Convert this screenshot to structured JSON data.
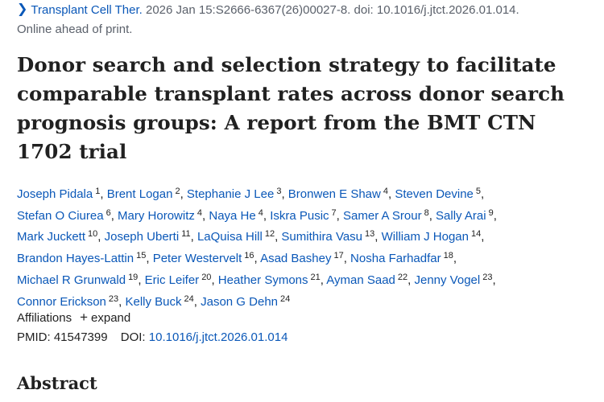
{
  "citation": {
    "journal": "Transplant Cell Ther.",
    "details": " 2026 Jan 15:S2666-6367(26)00027-8. doi: 10.1016/j.jtct.2026.01.014.",
    "status": "Online ahead of print."
  },
  "title": "Donor search and selection strategy to facilitate comparable transplant rates across donor search prognosis groups: A report from the BMT CTN 1702 trial",
  "authors": [
    {
      "name": "Joseph Pidala",
      "aff": "1"
    },
    {
      "name": "Brent Logan",
      "aff": "2"
    },
    {
      "name": "Stephanie J Lee",
      "aff": "3"
    },
    {
      "name": "Bronwen E Shaw",
      "aff": "4"
    },
    {
      "name": "Steven Devine",
      "aff": "5"
    },
    {
      "name": "Stefan O Ciurea",
      "aff": "6"
    },
    {
      "name": "Mary Horowitz",
      "aff": "4"
    },
    {
      "name": "Naya He",
      "aff": "4"
    },
    {
      "name": "Iskra Pusic",
      "aff": "7"
    },
    {
      "name": "Samer A Srour",
      "aff": "8"
    },
    {
      "name": "Sally Arai",
      "aff": "9"
    },
    {
      "name": "Mark Juckett",
      "aff": "10"
    },
    {
      "name": "Joseph Uberti",
      "aff": "11"
    },
    {
      "name": "LaQuisa Hill",
      "aff": "12"
    },
    {
      "name": "Sumithira Vasu",
      "aff": "13"
    },
    {
      "name": "William J Hogan",
      "aff": "14"
    },
    {
      "name": "Brandon Hayes-Lattin",
      "aff": "15"
    },
    {
      "name": "Peter Westervelt",
      "aff": "16"
    },
    {
      "name": "Asad Bashey",
      "aff": "17"
    },
    {
      "name": "Nosha Farhadfar",
      "aff": "18"
    },
    {
      "name": "Michael R Grunwald",
      "aff": "19"
    },
    {
      "name": "Eric Leifer",
      "aff": "20"
    },
    {
      "name": "Heather Symons",
      "aff": "21"
    },
    {
      "name": "Ayman Saad",
      "aff": "22"
    },
    {
      "name": "Jenny Vogel",
      "aff": "23"
    },
    {
      "name": "Connor Erickson",
      "aff": "23"
    },
    {
      "name": "Kelly Buck",
      "aff": "24"
    },
    {
      "name": "Jason G Dehn",
      "aff": "24"
    }
  ],
  "affiliations": {
    "label": "Affiliations",
    "toggle_symbol": "+",
    "expand_label": "expand"
  },
  "ids": {
    "pmid_label": "PMID:",
    "pmid_value": "41547399",
    "doi_label": "DOI:",
    "doi_value": "10.1016/j.jtct.2026.01.014"
  },
  "abstract_heading": "Abstract",
  "colors": {
    "link": "#0b58b8",
    "text": "#212121",
    "muted": "#5b616b"
  },
  "icons": {
    "citation_toggle": "chevron-right-icon"
  }
}
